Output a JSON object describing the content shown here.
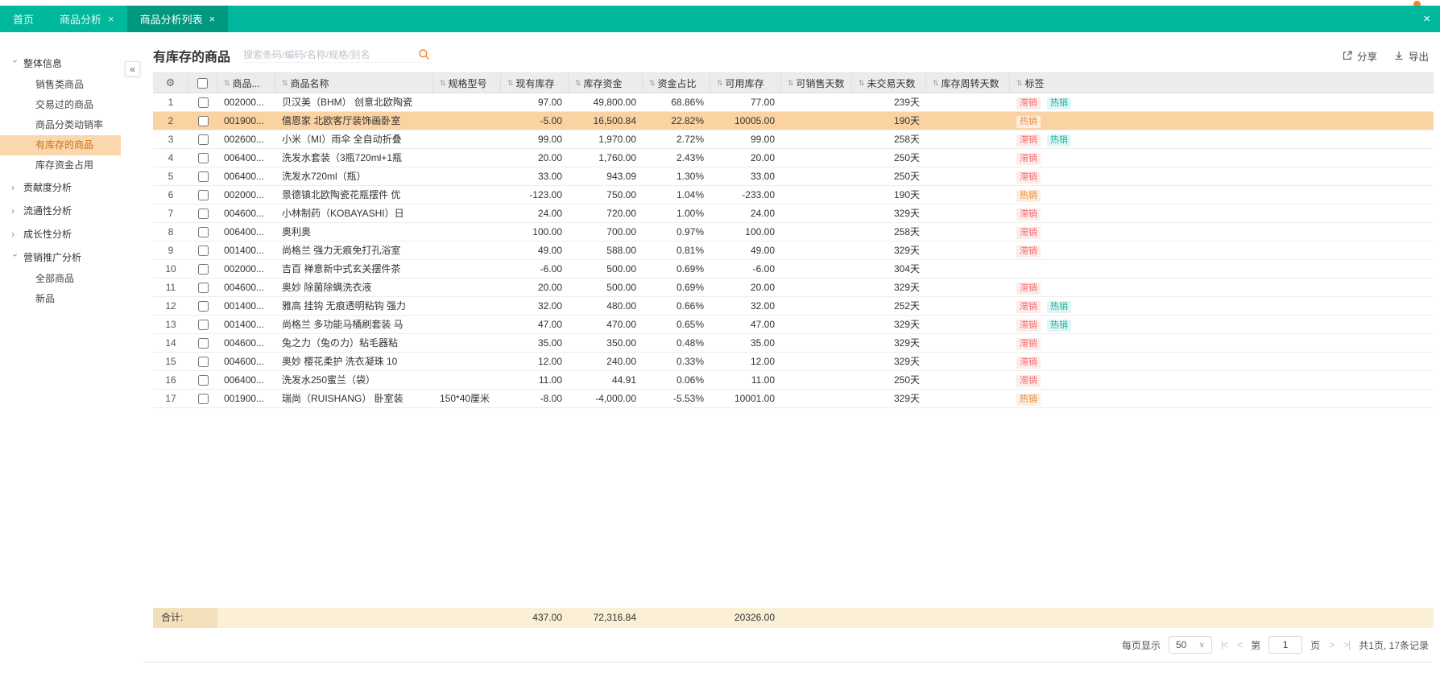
{
  "topbar": {
    "tabs": [
      {
        "label": "首页",
        "closable": false,
        "active": false
      },
      {
        "label": "商品分析",
        "closable": true,
        "active": false
      },
      {
        "label": "商品分析列表",
        "closable": true,
        "active": true
      }
    ],
    "close_icon": "×"
  },
  "sidebar": {
    "collapse_icon": "«",
    "active_item": "有库存的商品",
    "sections": [
      {
        "label": "整体信息",
        "expanded": true,
        "children": [
          "销售类商品",
          "交易过的商品",
          "商品分类动销率",
          "有库存的商品",
          "库存资金占用"
        ]
      },
      {
        "label": "贡献度分析",
        "expanded": false,
        "children": []
      },
      {
        "label": "流通性分析",
        "expanded": false,
        "children": []
      },
      {
        "label": "成长性分析",
        "expanded": false,
        "children": []
      },
      {
        "label": "营销推广分析",
        "expanded": true,
        "children": [
          "全部商品",
          "新品"
        ]
      }
    ]
  },
  "header": {
    "title": "有库存的商品",
    "search_placeholder": "搜索条码/编码/名称/规格/别名",
    "share_label": "分享",
    "export_label": "导出"
  },
  "table": {
    "columns": [
      {
        "key": "code",
        "label": "商品..."
      },
      {
        "key": "name",
        "label": "商品名称"
      },
      {
        "key": "spec",
        "label": "规格型号"
      },
      {
        "key": "stock",
        "label": "现有库存"
      },
      {
        "key": "fund",
        "label": "库存资金"
      },
      {
        "key": "ratio",
        "label": "资金占比"
      },
      {
        "key": "avail",
        "label": "可用库存"
      },
      {
        "key": "sell_days",
        "label": "可销售天数"
      },
      {
        "key": "no_trade",
        "label": "未交易天数"
      },
      {
        "key": "turnover",
        "label": "库存周转天数"
      },
      {
        "key": "tags",
        "label": "标签"
      }
    ],
    "rows": [
      {
        "index": "1",
        "code": "002000...",
        "name": "贝汉美（BHM） 创意北欧陶瓷",
        "spec": "",
        "stock": "97.00",
        "fund": "49,800.00",
        "ratio": "68.86%",
        "avail": "77.00",
        "sell_days": "",
        "no_trade": "239天",
        "turnover": "",
        "selected": false,
        "tags": [
          {
            "text": "滞销",
            "color": "red"
          },
          {
            "text": "热销",
            "color": "teal"
          }
        ]
      },
      {
        "index": "2",
        "code": "001900...",
        "name": "僖恩家 北欧客厅装饰画卧室",
        "spec": "",
        "stock": "-5.00",
        "fund": "16,500.84",
        "ratio": "22.82%",
        "avail": "10005.00",
        "sell_days": "",
        "no_trade": "190天",
        "turnover": "",
        "selected": true,
        "tags": [
          {
            "text": "热销",
            "color": "orange"
          }
        ]
      },
      {
        "index": "3",
        "code": "002600...",
        "name": "小米（MI）雨伞 全自动折叠",
        "spec": "",
        "stock": "99.00",
        "fund": "1,970.00",
        "ratio": "2.72%",
        "avail": "99.00",
        "sell_days": "",
        "no_trade": "258天",
        "turnover": "",
        "selected": false,
        "tags": [
          {
            "text": "滞销",
            "color": "red"
          },
          {
            "text": "热销",
            "color": "teal"
          }
        ]
      },
      {
        "index": "4",
        "code": "006400...",
        "name": "洗发水套装（3瓶720ml+1瓶",
        "spec": "",
        "stock": "20.00",
        "fund": "1,760.00",
        "ratio": "2.43%",
        "avail": "20.00",
        "sell_days": "",
        "no_trade": "250天",
        "turnover": "",
        "selected": false,
        "tags": [
          {
            "text": "滞销",
            "color": "red"
          }
        ]
      },
      {
        "index": "5",
        "code": "006400...",
        "name": "洗发水720ml（瓶）",
        "spec": "",
        "stock": "33.00",
        "fund": "943.09",
        "ratio": "1.30%",
        "avail": "33.00",
        "sell_days": "",
        "no_trade": "250天",
        "turnover": "",
        "selected": false,
        "tags": [
          {
            "text": "滞销",
            "color": "red"
          }
        ]
      },
      {
        "index": "6",
        "code": "002000...",
        "name": "景德镇北欧陶瓷花瓶摆件 优",
        "spec": "",
        "stock": "-123.00",
        "fund": "750.00",
        "ratio": "1.04%",
        "avail": "-233.00",
        "sell_days": "",
        "no_trade": "190天",
        "turnover": "",
        "selected": false,
        "tags": [
          {
            "text": "热销",
            "color": "orange"
          }
        ]
      },
      {
        "index": "7",
        "code": "004600...",
        "name": "小林制药（KOBAYASHI）日",
        "spec": "",
        "stock": "24.00",
        "fund": "720.00",
        "ratio": "1.00%",
        "avail": "24.00",
        "sell_days": "",
        "no_trade": "329天",
        "turnover": "",
        "selected": false,
        "tags": [
          {
            "text": "滞销",
            "color": "red"
          }
        ]
      },
      {
        "index": "8",
        "code": "006400...",
        "name": "奥利奥",
        "spec": "",
        "stock": "100.00",
        "fund": "700.00",
        "ratio": "0.97%",
        "avail": "100.00",
        "sell_days": "",
        "no_trade": "258天",
        "turnover": "",
        "selected": false,
        "tags": [
          {
            "text": "滞销",
            "color": "red"
          }
        ]
      },
      {
        "index": "9",
        "code": "001400...",
        "name": "尚格兰 强力无痕免打孔浴室",
        "spec": "",
        "stock": "49.00",
        "fund": "588.00",
        "ratio": "0.81%",
        "avail": "49.00",
        "sell_days": "",
        "no_trade": "329天",
        "turnover": "",
        "selected": false,
        "tags": [
          {
            "text": "滞销",
            "color": "red"
          }
        ]
      },
      {
        "index": "10",
        "code": "002000...",
        "name": "吉百 禅意新中式玄关摆件茶",
        "spec": "",
        "stock": "-6.00",
        "fund": "500.00",
        "ratio": "0.69%",
        "avail": "-6.00",
        "sell_days": "",
        "no_trade": "304天",
        "turnover": "",
        "selected": false,
        "tags": []
      },
      {
        "index": "11",
        "code": "004600...",
        "name": "奥妙 除菌除螨洗衣液",
        "spec": "",
        "stock": "20.00",
        "fund": "500.00",
        "ratio": "0.69%",
        "avail": "20.00",
        "sell_days": "",
        "no_trade": "329天",
        "turnover": "",
        "selected": false,
        "tags": [
          {
            "text": "滞销",
            "color": "red"
          }
        ]
      },
      {
        "index": "12",
        "code": "001400...",
        "name": "雅高 挂钩 无痕透明粘钩 强力",
        "spec": "",
        "stock": "32.00",
        "fund": "480.00",
        "ratio": "0.66%",
        "avail": "32.00",
        "sell_days": "",
        "no_trade": "252天",
        "turnover": "",
        "selected": false,
        "tags": [
          {
            "text": "滞销",
            "color": "red"
          },
          {
            "text": "热销",
            "color": "teal"
          }
        ]
      },
      {
        "index": "13",
        "code": "001400...",
        "name": "尚格兰 多功能马桶刷套装 马",
        "spec": "",
        "stock": "47.00",
        "fund": "470.00",
        "ratio": "0.65%",
        "avail": "47.00",
        "sell_days": "",
        "no_trade": "329天",
        "turnover": "",
        "selected": false,
        "tags": [
          {
            "text": "滞销",
            "color": "red"
          },
          {
            "text": "热销",
            "color": "teal"
          }
        ]
      },
      {
        "index": "14",
        "code": "004600...",
        "name": "兔之力（兔の力）粘毛器粘",
        "spec": "",
        "stock": "35.00",
        "fund": "350.00",
        "ratio": "0.48%",
        "avail": "35.00",
        "sell_days": "",
        "no_trade": "329天",
        "turnover": "",
        "selected": false,
        "tags": [
          {
            "text": "滞销",
            "color": "red"
          }
        ]
      },
      {
        "index": "15",
        "code": "004600...",
        "name": "奥妙 樱花柔护 洗衣凝珠 10",
        "spec": "",
        "stock": "12.00",
        "fund": "240.00",
        "ratio": "0.33%",
        "avail": "12.00",
        "sell_days": "",
        "no_trade": "329天",
        "turnover": "",
        "selected": false,
        "tags": [
          {
            "text": "滞销",
            "color": "red"
          }
        ]
      },
      {
        "index": "16",
        "code": "006400...",
        "name": "洗发水250蜜兰（袋）",
        "spec": "",
        "stock": "11.00",
        "fund": "44.91",
        "ratio": "0.06%",
        "avail": "11.00",
        "sell_days": "",
        "no_trade": "250天",
        "turnover": "",
        "selected": false,
        "tags": [
          {
            "text": "滞销",
            "color": "red"
          }
        ]
      },
      {
        "index": "17",
        "code": "001900...",
        "name": "瑞尚（RUISHANG） 卧室装",
        "spec": "150*40厘米",
        "stock": "-8.00",
        "fund": "-4,000.00",
        "ratio": "-5.53%",
        "avail": "10001.00",
        "sell_days": "",
        "no_trade": "329天",
        "turnover": "",
        "selected": false,
        "tags": [
          {
            "text": "热销",
            "color": "orange"
          }
        ]
      }
    ],
    "summary": {
      "label": "合计:",
      "values": {
        "stock": "437.00",
        "fund": "72,316.84",
        "avail": "20326.00"
      }
    }
  },
  "pagination": {
    "per_page_label": "每页显示",
    "per_page_value": "50",
    "first_icon": "|<",
    "prev_icon": "<",
    "next_icon": ">",
    "last_icon": ">|",
    "page_prefix": "第",
    "page_value": "1",
    "page_suffix": "页",
    "total_text": "共1页, 17条记录"
  },
  "colors": {
    "topbar_teal": "#00b89c",
    "active_tab_teal": "#00997f",
    "selected_row_orange": "#fbd2a2",
    "sidebar_active_orange": "#fbd7ad",
    "summary_cream": "#fbf0d6",
    "tag_red": "#f56c6c",
    "tag_teal": "#1fb3a5",
    "tag_orange": "#ef8c3c",
    "search_icon_orange": "#f5822a"
  }
}
